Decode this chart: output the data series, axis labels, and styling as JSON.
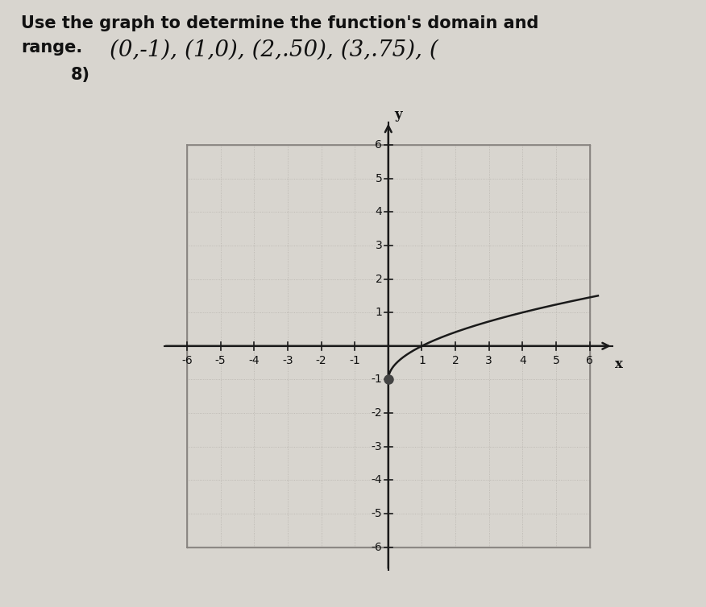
{
  "title_line1": "Use the graph to determine the function's domain and",
  "title_line2": "range.",
  "annotation": "(0,-1), (1,0), (2,.50), (3,.75), (",
  "problem_number": "8)",
  "background_color": "#d8d5cf",
  "grid_minor_color": "#b8b4ae",
  "grid_major_color": "#888480",
  "axis_color": "#1a1a1a",
  "curve_color": "#1a1a1a",
  "dot_color": "#444444",
  "xmin": -6,
  "xmax": 6,
  "ymin": -6,
  "ymax": 6,
  "dot_x": 0,
  "dot_y": -1,
  "title_fontsize": 15,
  "annotation_fontsize": 20,
  "number_fontsize": 13,
  "tick_label_fontsize": 10,
  "axis_label_fontsize": 12
}
